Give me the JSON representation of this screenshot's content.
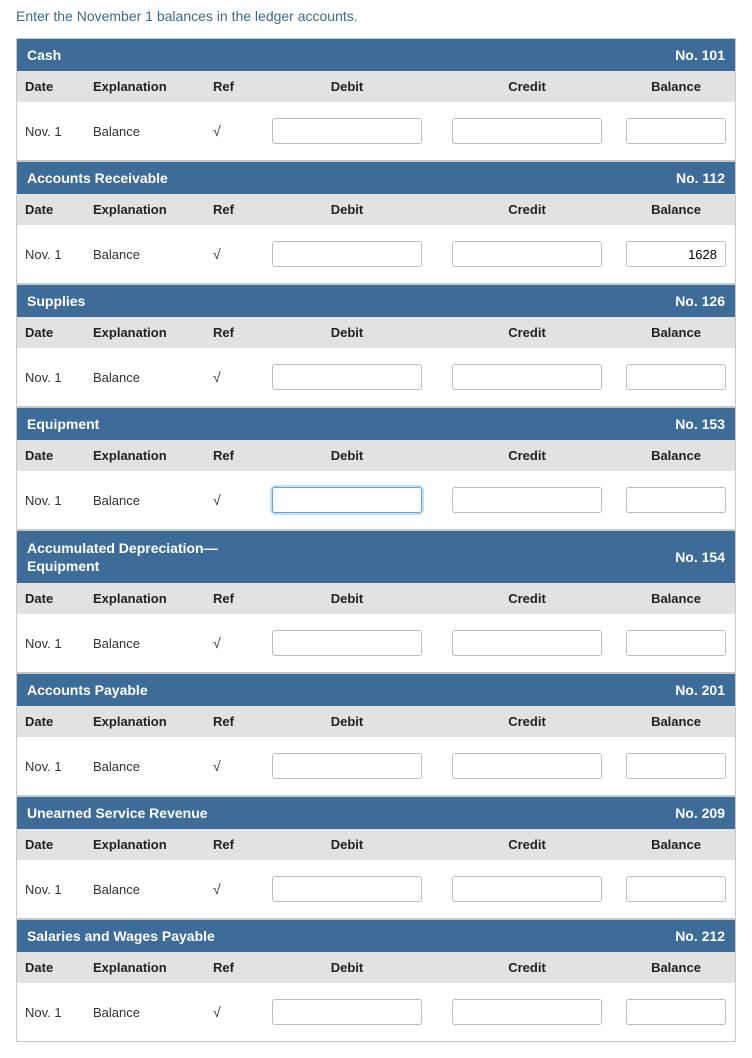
{
  "instruction": "Enter the November 1 balances in the ledger accounts.",
  "no_prefix": "No. ",
  "columns": {
    "date": "Date",
    "explanation": "Explanation",
    "ref": "Ref",
    "debit": "Debit",
    "credit": "Credit",
    "balance": "Balance"
  },
  "row": {
    "date": "Nov. 1",
    "explanation": "Balance",
    "ref": "√"
  },
  "accounts": [
    {
      "name": "Cash",
      "no": "101",
      "debit": "",
      "credit": "",
      "balance": "",
      "focused": false
    },
    {
      "name": "Accounts Receivable",
      "no": "112",
      "debit": "",
      "credit": "",
      "balance": "1628",
      "focused": false
    },
    {
      "name": "Supplies",
      "no": "126",
      "debit": "",
      "credit": "",
      "balance": "",
      "focused": false
    },
    {
      "name": "Equipment",
      "no": "153",
      "debit": "",
      "credit": "",
      "balance": "",
      "focused": true
    },
    {
      "name": "Accumulated Depreciation—\nEquipment",
      "no": "154",
      "debit": "",
      "credit": "",
      "balance": "",
      "focused": false
    },
    {
      "name": "Accounts Payable",
      "no": "201",
      "debit": "",
      "credit": "",
      "balance": "",
      "focused": false
    },
    {
      "name": "Unearned Service Revenue",
      "no": "209",
      "debit": "",
      "credit": "",
      "balance": "",
      "focused": false
    },
    {
      "name": "Salaries and Wages Payable",
      "no": "212",
      "debit": "",
      "credit": "",
      "balance": "",
      "focused": false
    }
  ],
  "colors": {
    "header_bg": "#3d6c99",
    "header_text": "#ffffff",
    "colhead_bg": "#e2e2e2",
    "instruction_text": "#3a6a8f"
  }
}
